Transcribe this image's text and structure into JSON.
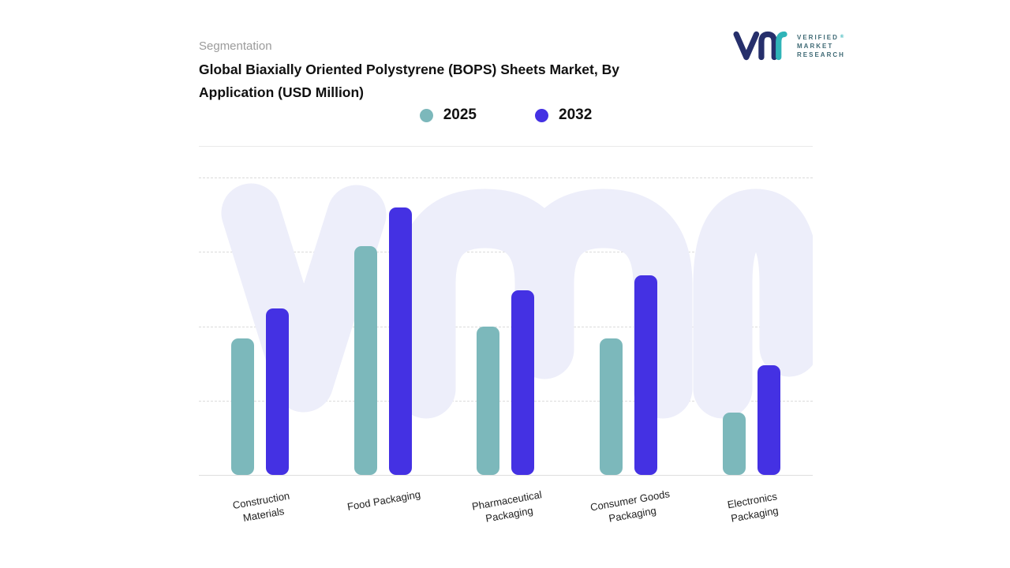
{
  "header": {
    "eyebrow": "Segmentation",
    "title_lines": [
      "Global Biaxially Oriented Polystyrene (BOPS) Sheets Market, By",
      "Application (USD Million)"
    ]
  },
  "logo": {
    "text_lines": [
      "VERIFIED",
      "MARKET",
      "RESEARCH"
    ],
    "registered_mark": "®"
  },
  "legend": {
    "items": [
      {
        "label": "2025",
        "color": "#7CB8BB"
      },
      {
        "label": "2032",
        "color": "#4431E3"
      }
    ]
  },
  "chart_data": {
    "type": "bar",
    "title": "Global Biaxially Oriented Polystyrene (BOPS) Sheets Market, By Application (USD Million)",
    "categories": [
      "Construction Materials",
      "Food Packaging",
      "Pharmaceutical Packaging",
      "Consumer Goods Packaging",
      "Electronics Packaging"
    ],
    "categories_display": [
      [
        "Construction",
        "Materials"
      ],
      [
        "Food Packaging"
      ],
      [
        "Pharmaceutical",
        "Packaging"
      ],
      [
        "Consumer Goods",
        "Packaging"
      ],
      [
        "Electronics",
        "Packaging"
      ]
    ],
    "series": [
      {
        "name": "2025",
        "color": "#7CB8BB",
        "values": [
          46,
          77,
          50,
          46,
          21
        ]
      },
      {
        "name": "2032",
        "color": "#4431E3",
        "values": [
          56,
          90,
          62,
          67,
          37
        ]
      }
    ],
    "xlabel": "",
    "ylabel": "",
    "ylim": [
      0,
      100
    ],
    "grid": "dashed-horizontal",
    "legend_position": "top-center"
  },
  "colors": {
    "watermark": "#EDEEFA",
    "logo_navy": "#262F6B",
    "logo_teal": "#2FB4B8",
    "logo_text": "#3F6A75",
    "gridline": "#DBDBDB",
    "axis_line": "#DEDEDE",
    "title_text": "#101010",
    "eyebrow_text": "#9B9B9B"
  }
}
